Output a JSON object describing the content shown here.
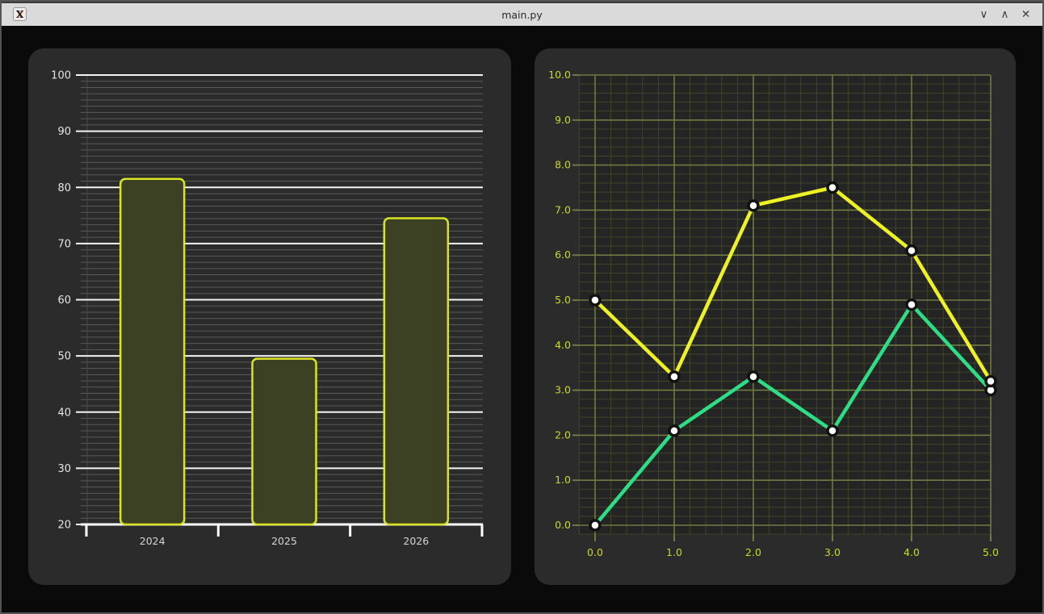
{
  "window": {
    "title": "main.py",
    "app_icon_letter": "X",
    "controls": {
      "minimize": "∨",
      "maximize": "∧",
      "close": "✕"
    }
  },
  "chart_data": [
    {
      "type": "bar",
      "title": "",
      "categories": [
        "2024",
        "2025",
        "2026"
      ],
      "values": [
        81.5,
        49.5,
        74.5
      ],
      "xlabel": "",
      "ylabel": "",
      "ylim": [
        20,
        100
      ],
      "ytick_values": [
        20,
        30,
        40,
        50,
        60,
        70,
        80,
        90,
        100
      ],
      "ytick_labels": [
        "20",
        "30",
        "40",
        "50",
        "60",
        "70",
        "80",
        "90",
        "100"
      ],
      "minor_subdivisions": 9,
      "grid": true,
      "legend": false,
      "bar_fill": "#3c4124",
      "bar_stroke": "#dbe422",
      "major_grid_color": "#f4f4f4",
      "minor_grid_color": "#5a5a5a",
      "axis_color": "#ffffff",
      "tick_label_color": "#e4e4e4"
    },
    {
      "type": "line",
      "title": "",
      "x": [
        0,
        1,
        2,
        3,
        4,
        5
      ],
      "series": [
        {
          "name": "green-series",
          "color": "#2ede87",
          "values": [
            0.0,
            2.1,
            3.3,
            2.1,
            4.9,
            3.0
          ]
        },
        {
          "name": "yellow-series",
          "color": "#eef222",
          "values": [
            5.0,
            3.3,
            7.1,
            7.5,
            6.1,
            3.2
          ]
        }
      ],
      "xlabel": "",
      "ylabel": "",
      "xlim": [
        0,
        5
      ],
      "ylim": [
        0,
        10
      ],
      "xtick_labels": [
        "0.0",
        "1.0",
        "2.0",
        "3.0",
        "4.0",
        "5.0"
      ],
      "ytick_labels": [
        "0.0",
        "1.0",
        "2.0",
        "3.0",
        "4.0",
        "5.0",
        "6.0",
        "7.0",
        "8.0",
        "9.0",
        "10.0"
      ],
      "minor_step": 0.2,
      "grid": true,
      "legend": false,
      "plot_bg": "#242424",
      "major_grid_color": "#6f7a40",
      "minor_grid_color": "#3f4527",
      "tick_label_color": "#ccd72e",
      "marker_fill": "#ffffff",
      "marker_ring": "#111111"
    }
  ]
}
